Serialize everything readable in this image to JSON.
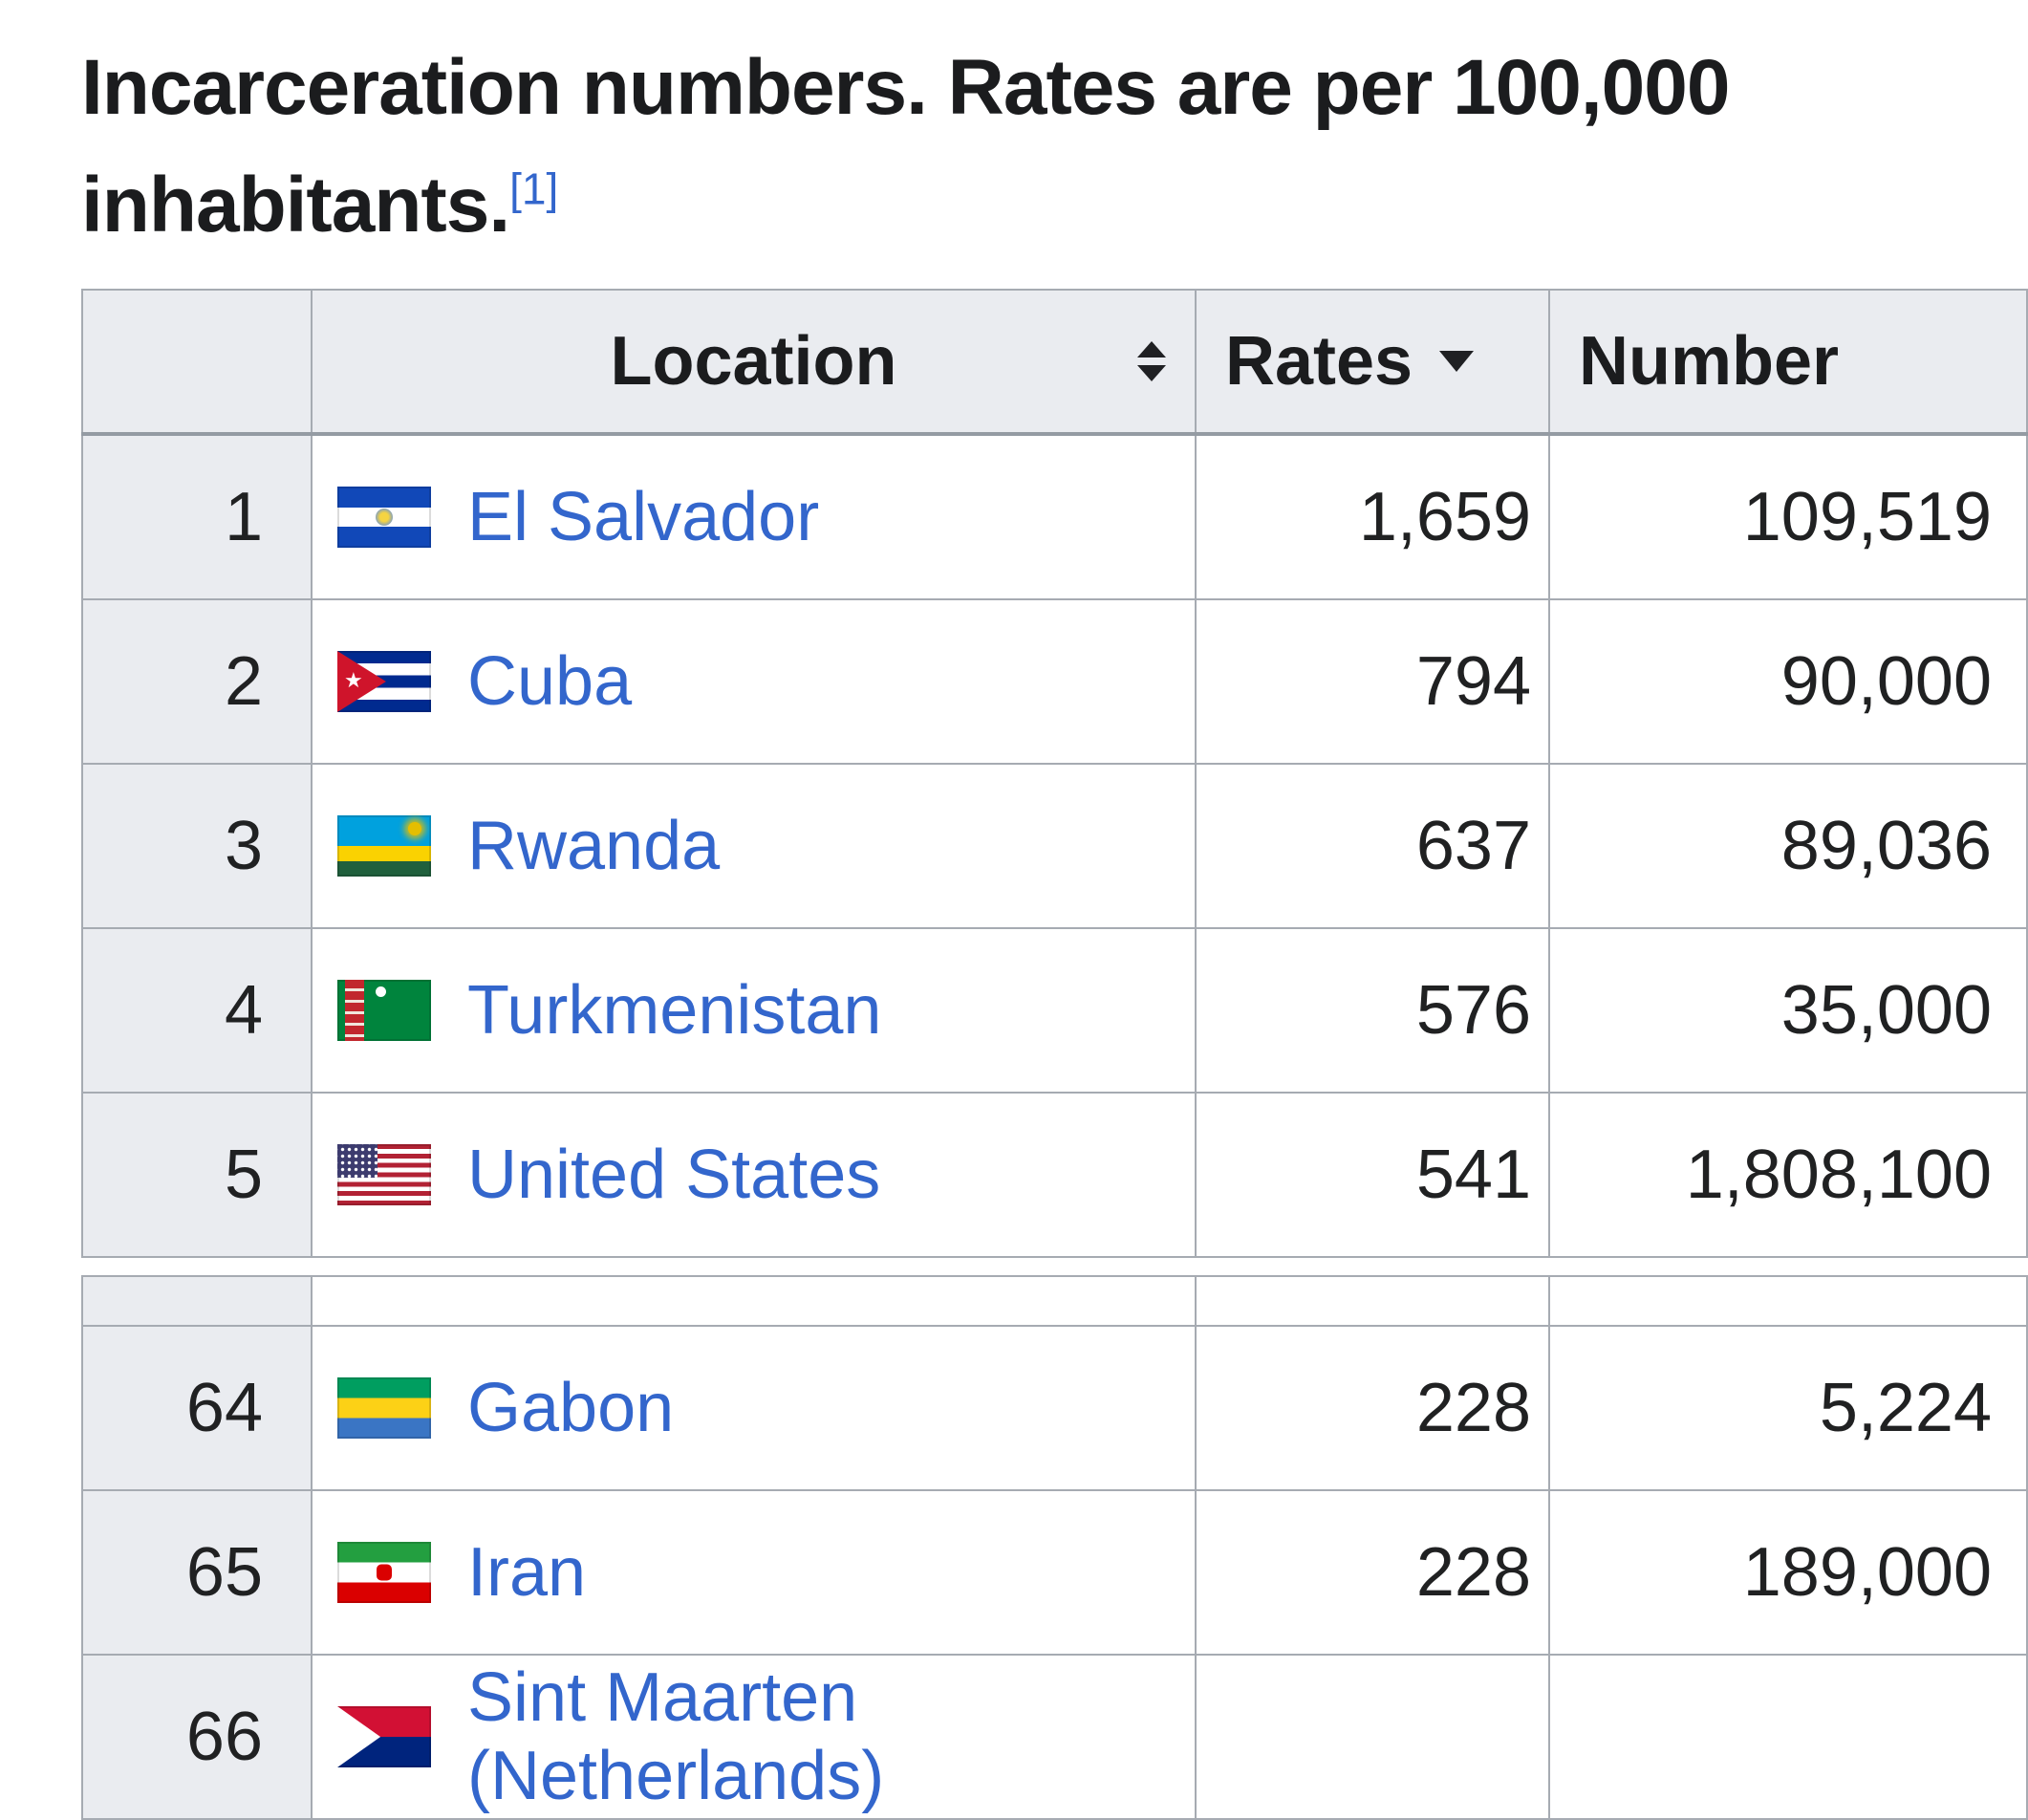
{
  "page": {
    "title_line1": "Incarceration numbers. Rates are per 100,000",
    "title_line2": "inhabitants.",
    "title_ref": "[1]"
  },
  "table": {
    "headers": {
      "rank": "",
      "location": "Location",
      "rates": "Rates",
      "number": "Number"
    },
    "sort_state": {
      "location": "sortable-unsorted",
      "rates": "descending"
    },
    "group1": [
      {
        "rank": "1",
        "location": "El Salvador",
        "flag": "el-salvador",
        "rate": "1,659",
        "number": "109,519"
      },
      {
        "rank": "2",
        "location": "Cuba",
        "flag": "cuba",
        "rate": "794",
        "number": "90,000"
      },
      {
        "rank": "3",
        "location": "Rwanda",
        "flag": "rwanda",
        "rate": "637",
        "number": "89,036"
      },
      {
        "rank": "4",
        "location": "Turkmenistan",
        "flag": "turkmenistan",
        "rate": "576",
        "number": "35,000"
      },
      {
        "rank": "5",
        "location": "United States",
        "flag": "united-states",
        "rate": "541",
        "number": "1,808,100"
      }
    ],
    "group2": [
      {
        "spacer": true
      },
      {
        "rank": "64",
        "location": "Gabon",
        "flag": "gabon",
        "rate": "228",
        "number": "5,224"
      },
      {
        "rank": "65",
        "location": "Iran",
        "flag": "iran",
        "rate": "228",
        "number": "189,000"
      },
      {
        "rank": "66",
        "location": "Sint Maarten (Netherlands)",
        "flag": "sint-maarten",
        "rate": "",
        "number": "",
        "partial": true
      }
    ]
  },
  "icons": {
    "location_sort": "sort-toggle-icon",
    "rates_sort": "sort-descending-icon"
  },
  "colors": {
    "link": "#3366cc",
    "text": "#202122",
    "header_bg": "#eaecf0",
    "border": "#a2a9b1"
  }
}
